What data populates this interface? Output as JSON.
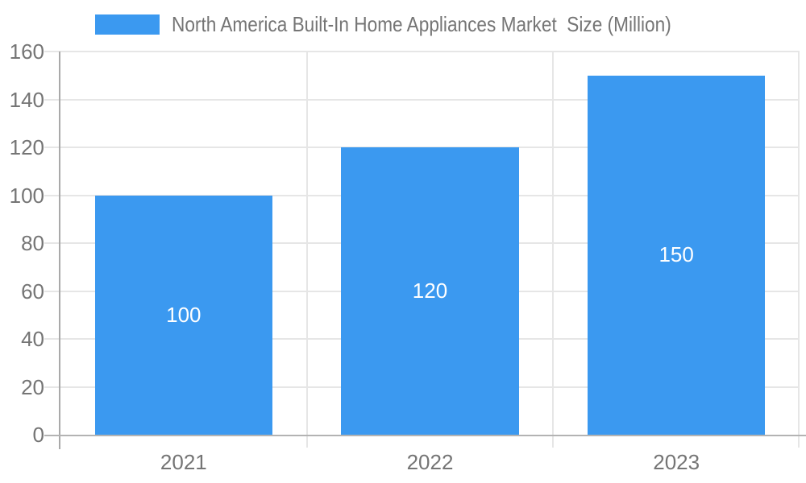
{
  "legend": {
    "swatch_color": "#3B99F0",
    "label": "North America Built-In Home Appliances Market  Size (Million)"
  },
  "chart_data": {
    "type": "bar",
    "title": "North America Built-In Home Appliances Market  Size (Million)",
    "categories": [
      "2021",
      "2022",
      "2023"
    ],
    "values": [
      100,
      120,
      150
    ],
    "series": [
      {
        "name": "North America Built-In Home Appliances Market  Size (Million)",
        "values": [
          100,
          120,
          150
        ]
      }
    ],
    "xlabel": "",
    "ylabel": "",
    "ylim": [
      0,
      160
    ],
    "yticks": [
      0,
      20,
      40,
      60,
      80,
      100,
      120,
      140,
      160
    ],
    "grid": true,
    "legend_position": "top",
    "bar_color": "#3B99F0",
    "bar_label_color": "#ffffff",
    "bar_width_ratio": 0.72
  },
  "colors": {
    "background": "#ffffff",
    "axis_text": "#757575",
    "legend_text": "#757575",
    "grid_line": "#e6e6e6",
    "axis_line_x": "#b3b3b3",
    "axis_line_y": "#a9a9a9"
  }
}
